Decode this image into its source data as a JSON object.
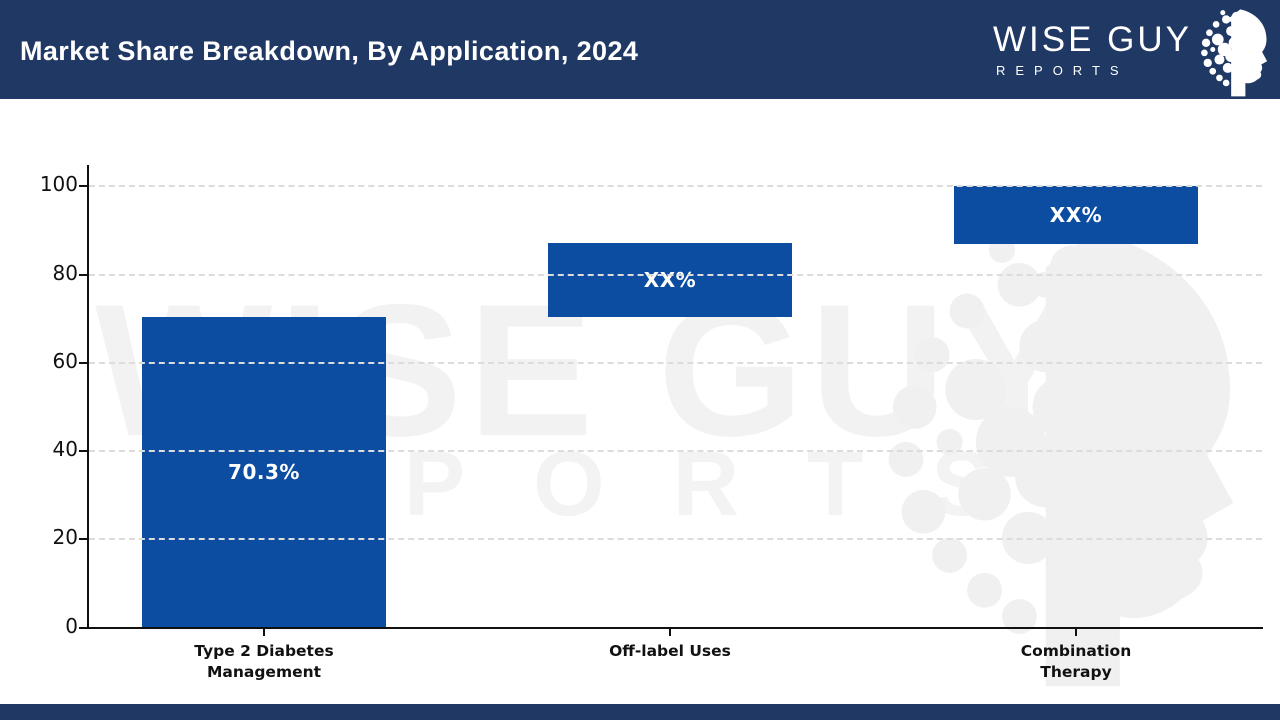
{
  "header": {
    "title": "Market Share Breakdown, By Application, 2024",
    "brand": {
      "line1": "WISE GUY",
      "line2": "REPORTS"
    }
  },
  "watermark": {
    "line1": "WISE GUY",
    "line2": "REPORTS"
  },
  "chart_data": {
    "type": "bar",
    "subtype": "floating-segment / waterfall of market shares",
    "title": "Market Share Breakdown, By Application, 2024",
    "categories": [
      "Type 2 Diabetes Management",
      "Off-label Uses",
      "Combination Therapy"
    ],
    "categories_lines": [
      [
        "Type 2 Diabetes",
        "Management"
      ],
      [
        "Off-label Uses"
      ],
      [
        "Combination",
        "Therapy"
      ]
    ],
    "segments": [
      {
        "category": "Type 2 Diabetes Management",
        "base": 0,
        "top": 70.3,
        "label": "70.3%"
      },
      {
        "category": "Off-label Uses",
        "base": 70.3,
        "top": 87.2,
        "label": "XX%"
      },
      {
        "category": "Combination Therapy",
        "base": 86.9,
        "top": 100,
        "label": "XX%"
      }
    ],
    "yticks": [
      0,
      20,
      40,
      60,
      80,
      100
    ],
    "ylim": [
      0,
      105
    ],
    "xlabel": "",
    "ylabel": "",
    "grid": "horizontal dashed, drawn above bars",
    "legend": "none",
    "bar_color": "#0c4da2",
    "value_label_color": "#ffffff"
  },
  "colors": {
    "header_bg": "#1f3864",
    "footer_bg": "#1f3864",
    "bar": "#0c4da2",
    "gridline": "#dcdcdc",
    "axis": "#111111",
    "watermark": "#f2f2f2"
  }
}
